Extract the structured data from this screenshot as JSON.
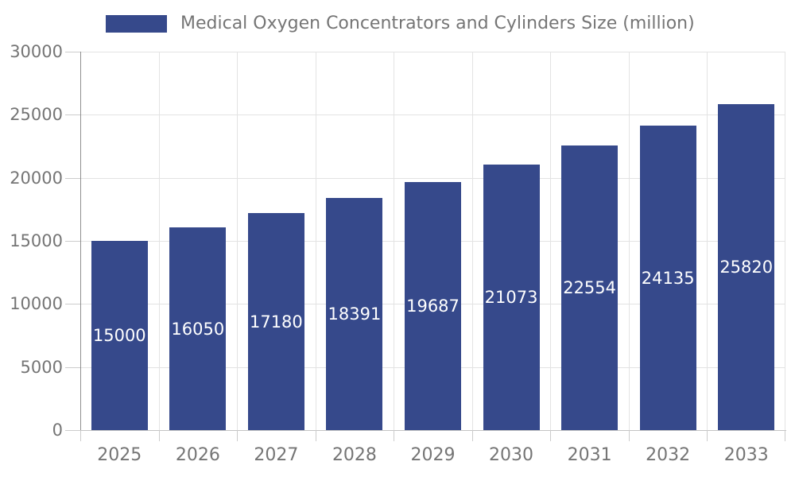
{
  "chart_data": {
    "type": "bar",
    "title": "",
    "series_label": "Medical Oxygen Concentrators and Cylinders Size (million)",
    "categories": [
      "2025",
      "2026",
      "2027",
      "2028",
      "2029",
      "2030",
      "2031",
      "2032",
      "2033"
    ],
    "values": [
      15000,
      16050,
      17180,
      18391,
      19687,
      21073,
      22554,
      24135,
      25820
    ],
    "data_labels": [
      "15000",
      "16050",
      "17180",
      "18391",
      "19687",
      "21073",
      "22554",
      "24135",
      "25820"
    ],
    "xlabel": "",
    "ylabel": "",
    "ylim": [
      0,
      30000
    ],
    "yticks": [
      0,
      5000,
      10000,
      15000,
      20000,
      25000,
      30000
    ],
    "ytick_labels": [
      "0",
      "5000",
      "10000",
      "15000",
      "20000",
      "25000",
      "30000"
    ],
    "grid": true,
    "legend_position": "top",
    "colors": {
      "bar": "#36498B",
      "data_label": "#FFFFFF",
      "grid": "#E3E3E3",
      "axis_y": "#8F8F8F",
      "axis_x": "#C4C4C4",
      "tick": "#CCCCCC",
      "tick_text": "#757575"
    }
  }
}
